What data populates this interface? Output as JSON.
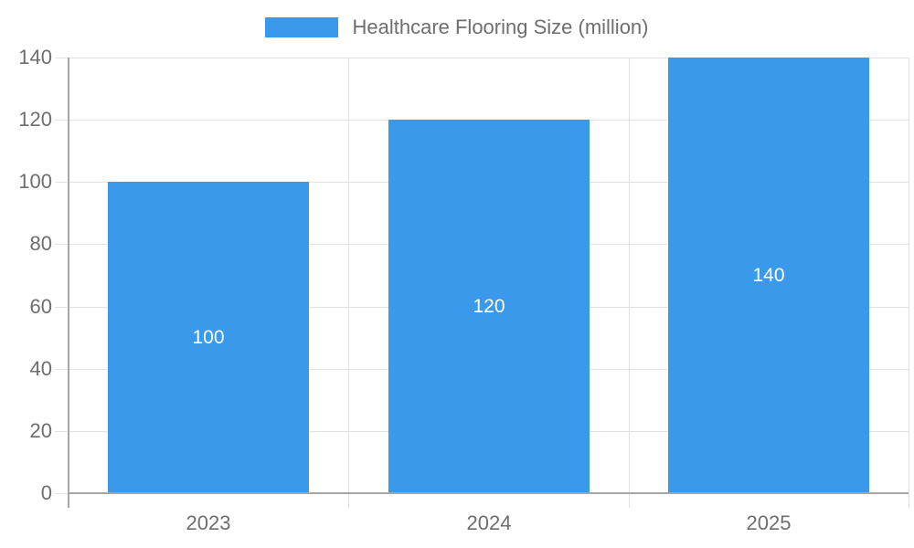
{
  "chart_data": {
    "type": "bar",
    "title": "Healthcare Flooring Size (million)",
    "legend": {
      "position": "top",
      "entries": [
        "Healthcare Flooring Size (million)"
      ]
    },
    "categories": [
      "2023",
      "2024",
      "2025"
    ],
    "series": [
      {
        "name": "Healthcare Flooring Size (million)",
        "values": [
          100,
          120,
          140
        ]
      }
    ],
    "data_labels": [
      "100",
      "120",
      "140"
    ],
    "xlabel": "",
    "ylabel": "",
    "ylim": [
      0,
      140
    ],
    "ytick_step": 20,
    "ytick_labels": [
      "0",
      "20",
      "40",
      "60",
      "80",
      "100",
      "120",
      "140"
    ],
    "grid": true,
    "colors": {
      "bar": "#3B99EC",
      "data_label": "#FFFFFF",
      "tick_label": "#6E6E6E",
      "legend_text": "#6E6E6E",
      "axis_line": "#A6A6A6",
      "gridline": "#E2E2E2",
      "background": "#FFFFFF"
    }
  }
}
